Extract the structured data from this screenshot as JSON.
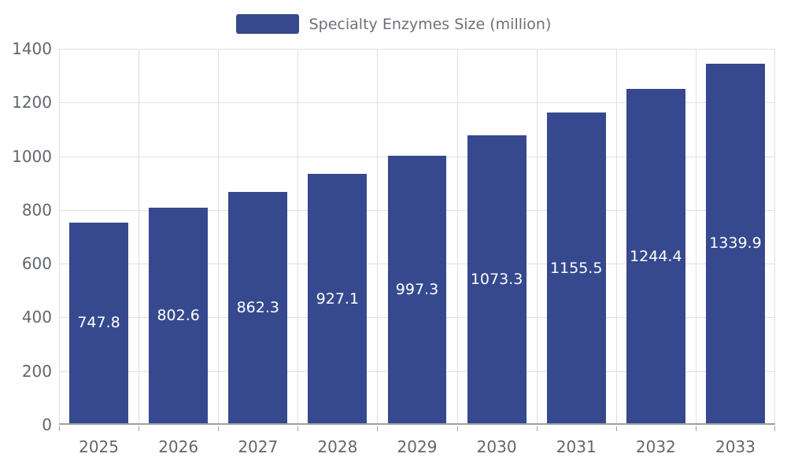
{
  "legend": {
    "label": "Specialty Enzymes Size (million)"
  },
  "chart_data": {
    "type": "bar",
    "title": "Specialty Enzymes Size (million)",
    "categories": [
      "2025",
      "2026",
      "2027",
      "2028",
      "2029",
      "2030",
      "2031",
      "2032",
      "2033"
    ],
    "values": [
      747.8,
      802.6,
      862.3,
      927.1,
      997.3,
      1073.3,
      1155.5,
      1244.4,
      1339.9
    ],
    "xlabel": "",
    "ylabel": "",
    "ylim": [
      0,
      1400
    ],
    "yticks": [
      0,
      200,
      400,
      600,
      800,
      1000,
      1200,
      1400
    ],
    "grid": true,
    "legend_position": "top",
    "bar_color": "#36498E",
    "value_label_color": "#ffffff",
    "axis_text_color": "#62666e",
    "grid_color": "#e0e0e0"
  }
}
